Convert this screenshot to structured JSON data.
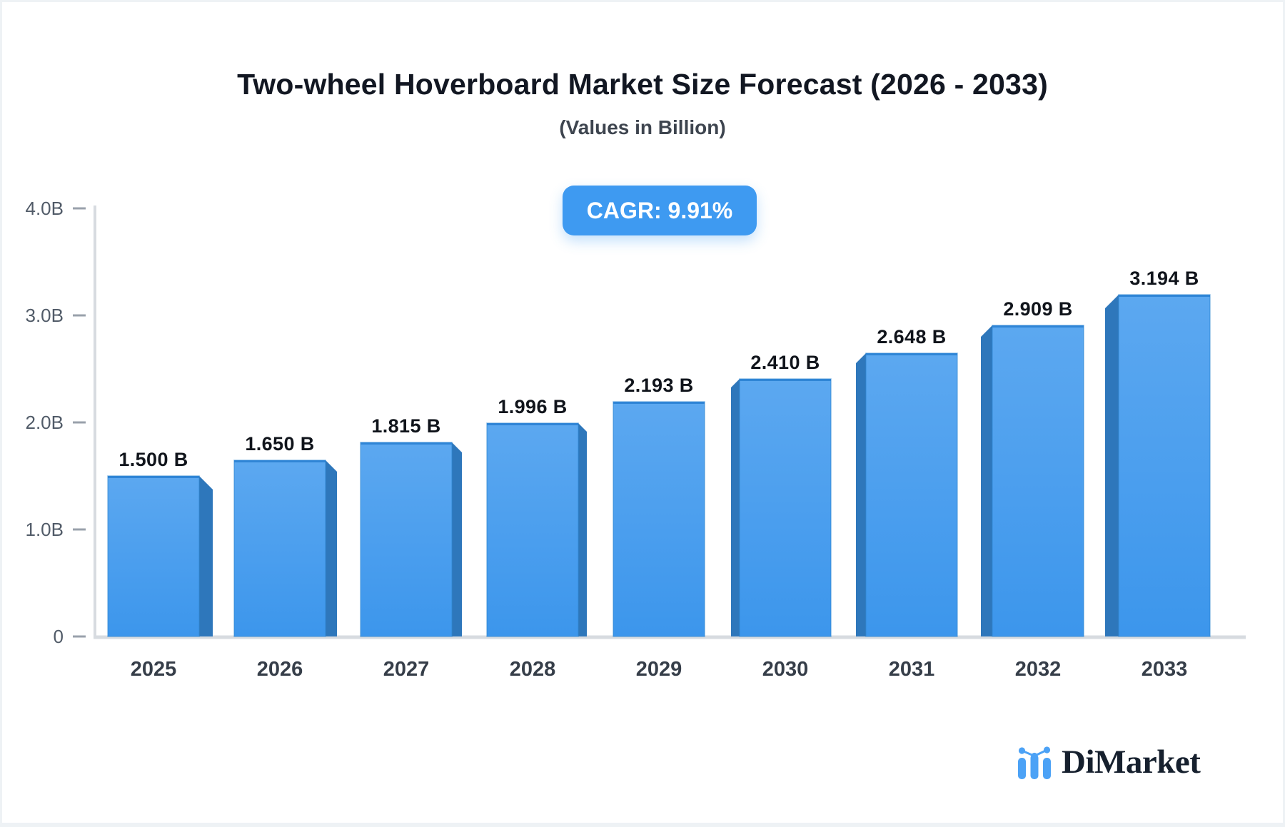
{
  "title": "Two-wheel Hoverboard Market Size Forecast (2026 - 2033)",
  "subtitle": "(Values in Billion)",
  "cagr_badge": "CAGR: 9.91%",
  "logo": {
    "text": "DiMarket",
    "icon": "bar-chart-dots-icon"
  },
  "colors": {
    "badge_bg": "#3e9af1",
    "bar_front_top": "#5ca8f0",
    "bar_front_bottom": "#3c96ec",
    "bar_side": "#2e77bb",
    "bar_top_edge": "#2f85d6",
    "bar_front_outline": "#3187d2",
    "axis_line": "#d7dbe0",
    "tick": "#99a1ab",
    "y_label": "#515b68",
    "x_label": "#363e49",
    "bar_label": "#10141b",
    "logo_icon": "#4ca2f6",
    "logo_text": "#16202e"
  },
  "chart_data": {
    "type": "bar",
    "title": "Two-wheel Hoverboard Market Size Forecast (2026 - 2033)",
    "subtitle": "(Values in Billion)",
    "xlabel": "",
    "ylabel": "",
    "ylim": [
      0,
      4
    ],
    "grid": false,
    "legend": "none",
    "unit": "Billion",
    "cagr_percent": 9.91,
    "categories": [
      "2025",
      "2026",
      "2027",
      "2028",
      "2029",
      "2030",
      "2031",
      "2032",
      "2033"
    ],
    "values": [
      1.5,
      1.65,
      1.815,
      1.996,
      2.193,
      2.41,
      2.648,
      2.909,
      3.194
    ],
    "bar_labels": [
      "1.500 B",
      "1.650 B",
      "1.815 B",
      "1.996 B",
      "2.193 B",
      "2.410 B",
      "2.648 B",
      "2.909 B",
      "3.194 B"
    ],
    "y_ticks": [
      {
        "value": 0,
        "label": "0"
      },
      {
        "value": 1,
        "label": "1.0B"
      },
      {
        "value": 2,
        "label": "2.0B"
      },
      {
        "value": 3,
        "label": "3.0B"
      },
      {
        "value": 4,
        "label": "4.0B"
      }
    ]
  }
}
